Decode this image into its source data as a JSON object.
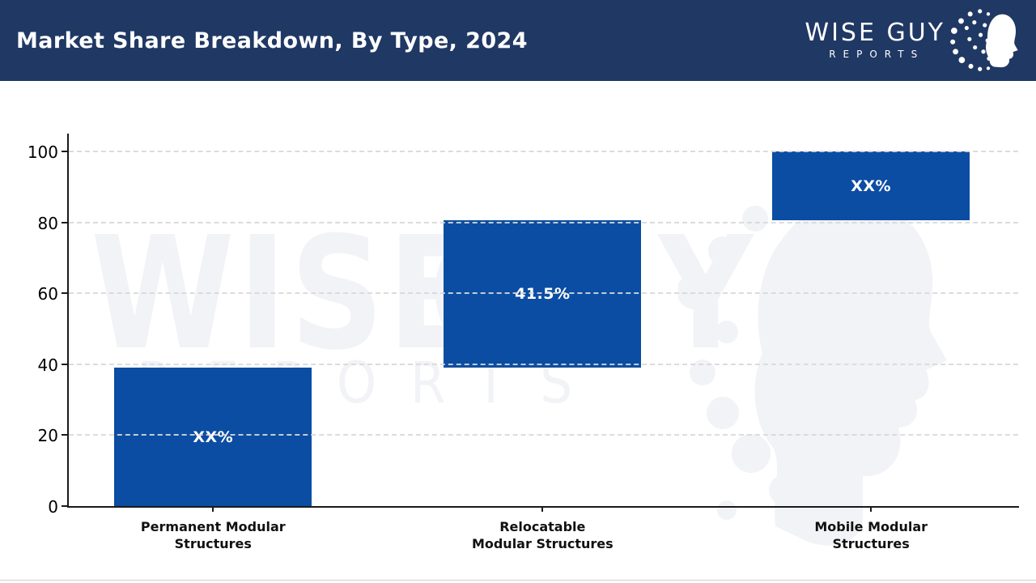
{
  "header": {
    "title": "Market Share Breakdown, By Type, 2024",
    "logo": {
      "line1": "WISE GUY",
      "line2": "REPORTS"
    },
    "colors": {
      "bg": "#203864",
      "text": "#ffffff"
    }
  },
  "chart_data": {
    "type": "bar",
    "subtype": "floating-waterfall",
    "title": "Market Share Breakdown, By Type, 2024",
    "categories": [
      "Permanent Modular\nStructures",
      "Relocatable\nModular Structures",
      "Mobile Modular\nStructures"
    ],
    "series": [
      {
        "name": "Market share (%)",
        "segments": [
          {
            "category": "Permanent Modular Structures",
            "start": 0,
            "end": 39,
            "value": 39,
            "value_label": "XX%"
          },
          {
            "category": "Relocatable Modular Structures",
            "start": 39,
            "end": 80.5,
            "value": 41.5,
            "value_label": "41.5%"
          },
          {
            "category": "Mobile Modular Structures",
            "start": 80.5,
            "end": 100,
            "value": 19.5,
            "value_label": "XX%"
          }
        ]
      }
    ],
    "ylim": [
      0,
      100
    ],
    "yticks": [
      0,
      20,
      40,
      60,
      80,
      100
    ],
    "grid": "horizontal-dashed",
    "legend": "none",
    "bar_color": "#0b4da2",
    "bar_label_color": "#ffffff",
    "axis_color": "#1a1a1a",
    "watermark": {
      "word1": "WISE",
      "word2": "GUY",
      "word3": "REPORTS"
    }
  }
}
